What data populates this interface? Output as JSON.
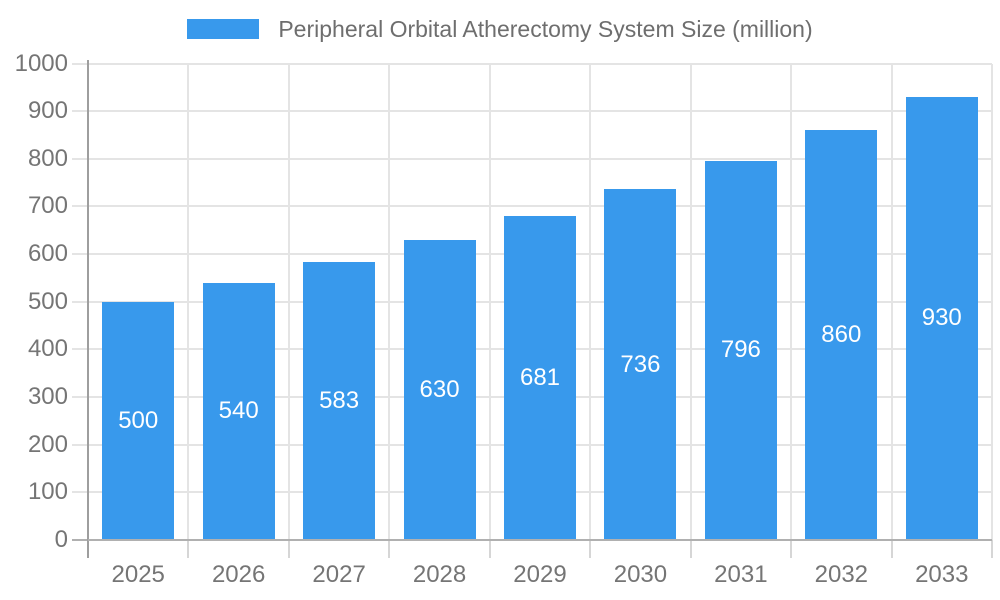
{
  "chart_data": {
    "type": "bar",
    "title": "Peripheral Orbital Atherectomy System Size (million)",
    "categories": [
      "2025",
      "2026",
      "2027",
      "2028",
      "2029",
      "2030",
      "2031",
      "2032",
      "2033"
    ],
    "series": [
      {
        "name": "Peripheral Orbital Atherectomy System Size (million)",
        "values": [
          500,
          540,
          583,
          630,
          681,
          736,
          796,
          860,
          930
        ]
      }
    ],
    "xlabel": "",
    "ylabel": "",
    "ylim": [
      0,
      1000
    ],
    "y_ticks": [
      0,
      100,
      200,
      300,
      400,
      500,
      600,
      700,
      800,
      900,
      1000
    ],
    "grid": true,
    "legend_position": "top",
    "value_labels_inside_bars": true,
    "colors": {
      "bar": "#3899EC",
      "value_label": "#FFFFFF",
      "axis_text": "#757575",
      "legend_text": "#6E6E6E",
      "grid_line": "#E4E4E4",
      "axis_line": "#9E9E9E",
      "baseline": "#B0B0B0",
      "tick": "#D6D6D6",
      "background": "#FFFFFF"
    }
  }
}
